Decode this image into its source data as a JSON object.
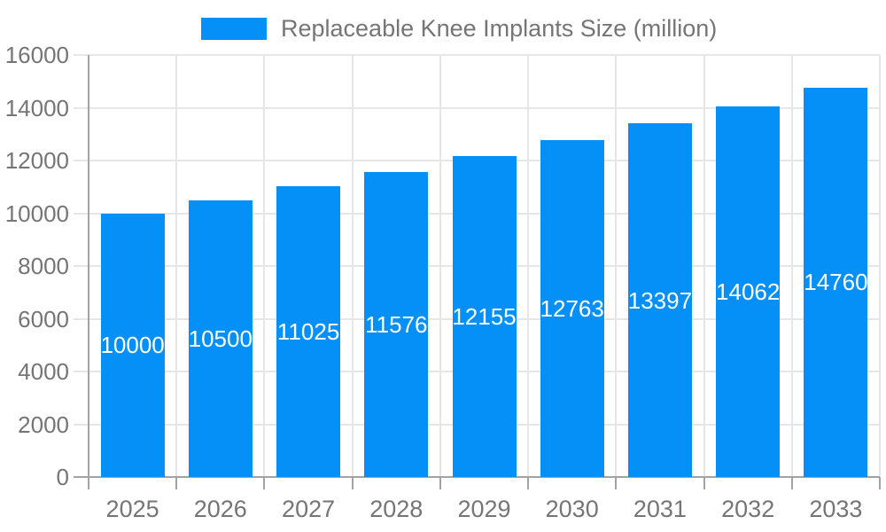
{
  "chart_data": {
    "type": "bar",
    "title": "Replaceable Knee Implants Size (million)",
    "legend": {
      "label": "Replaceable Knee Implants Size (million)",
      "position": "top"
    },
    "categories": [
      "2025",
      "2026",
      "2027",
      "2028",
      "2029",
      "2030",
      "2031",
      "2032",
      "2033"
    ],
    "values": [
      10000,
      10500,
      11025,
      11576,
      12155,
      12763,
      13397,
      14062,
      14760
    ],
    "value_labels_shown": true,
    "value_label_position": "inside-center",
    "xlabel": "",
    "ylabel": "",
    "ylim": [
      0,
      16000
    ],
    "yticks": [
      0,
      2000,
      4000,
      6000,
      8000,
      10000,
      12000,
      14000,
      16000
    ],
    "grid": true,
    "colors": {
      "bar": "#0590f8",
      "axis": "#a3a3a3",
      "grid": "#e6e6e6",
      "tick_label": "#757575",
      "value_label": "#ffffff",
      "background": "#ffffff"
    }
  }
}
